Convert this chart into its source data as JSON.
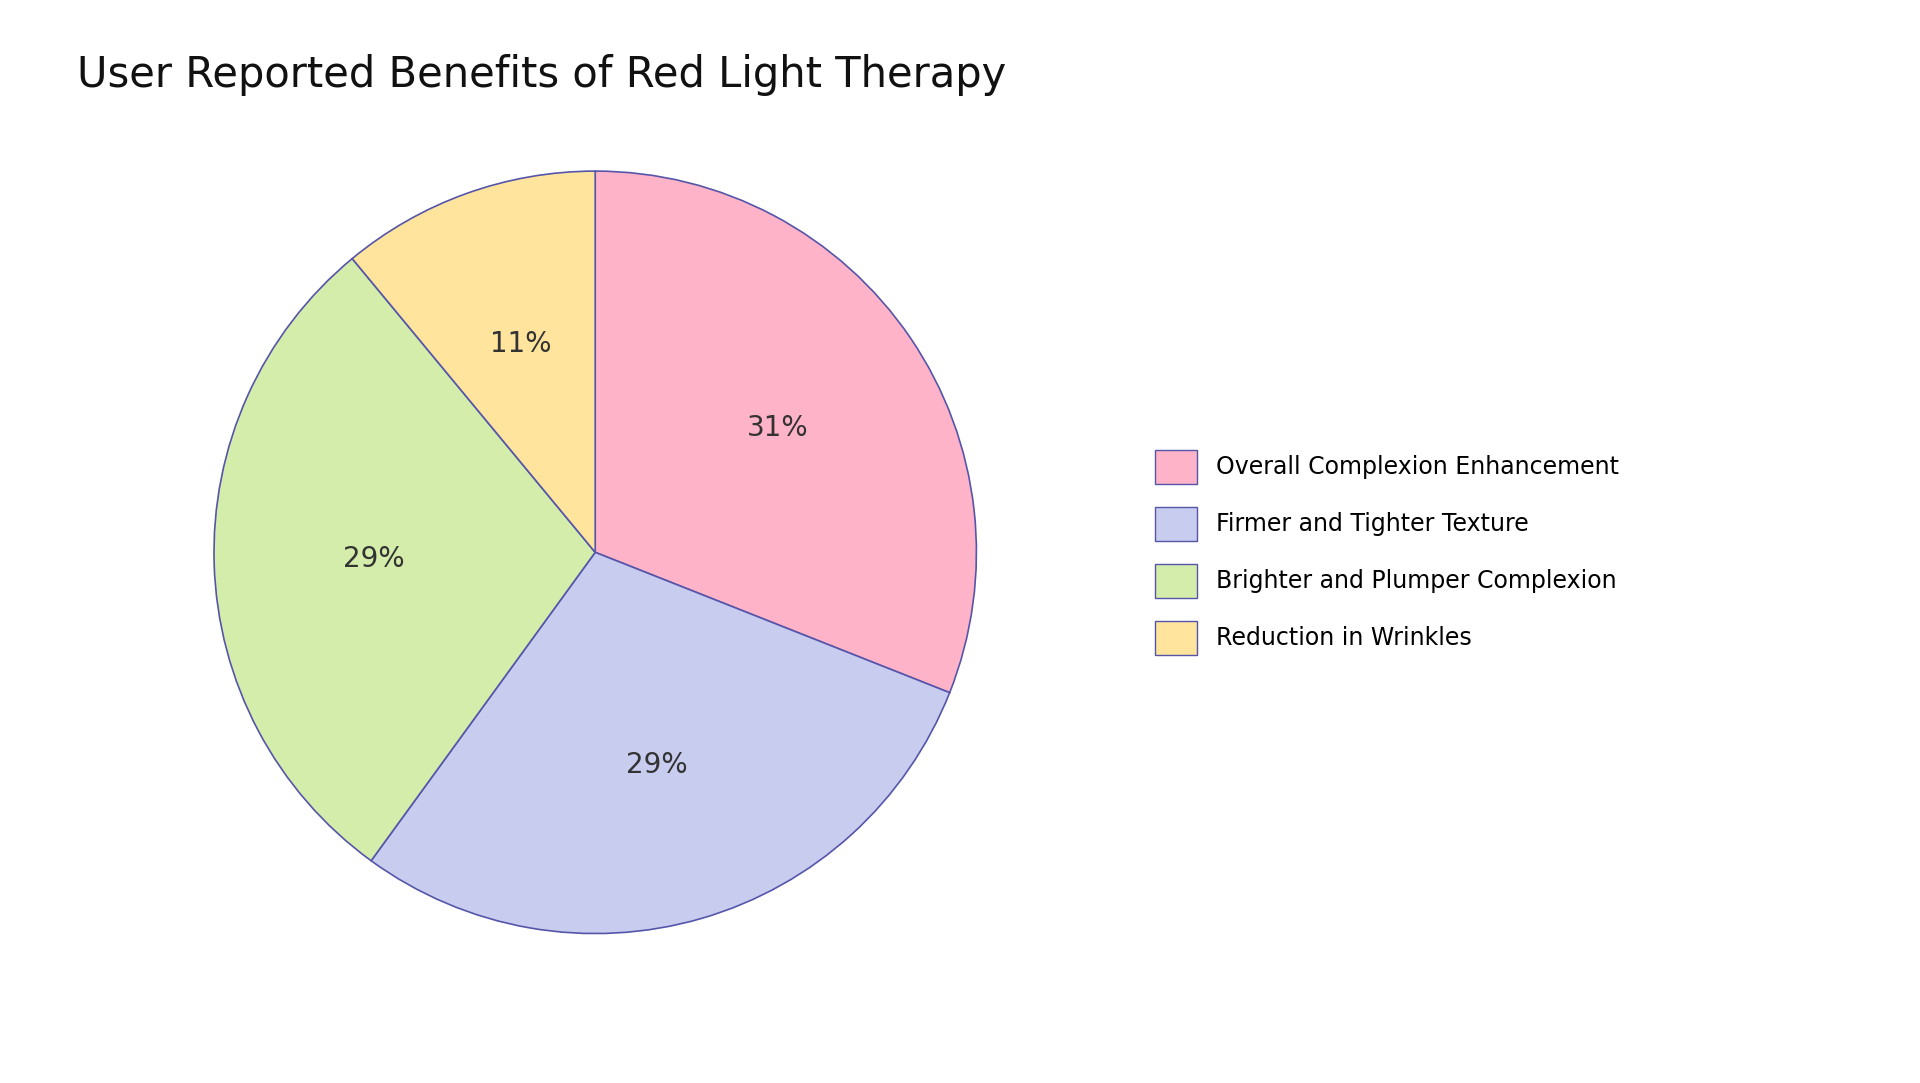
{
  "title": "User Reported Benefits of Red Light Therapy",
  "labels": [
    "Overall Complexion Enhancement",
    "Firmer and Tighter Texture",
    "Brighter and Plumper Complexion",
    "Reduction in Wrinkles"
  ],
  "values": [
    31,
    29,
    29,
    11
  ],
  "colors": [
    "#FFB3C8",
    "#C8CCEE",
    "#D4EDAA",
    "#FFE49E"
  ],
  "edge_color": "#5555AA",
  "edge_width": 1.2,
  "pct_labels": [
    "31%",
    "29%",
    "29%",
    "11%"
  ],
  "title_fontsize": 30,
  "pct_fontsize": 20,
  "legend_fontsize": 17,
  "background_color": "#ffffff",
  "startangle": 90
}
